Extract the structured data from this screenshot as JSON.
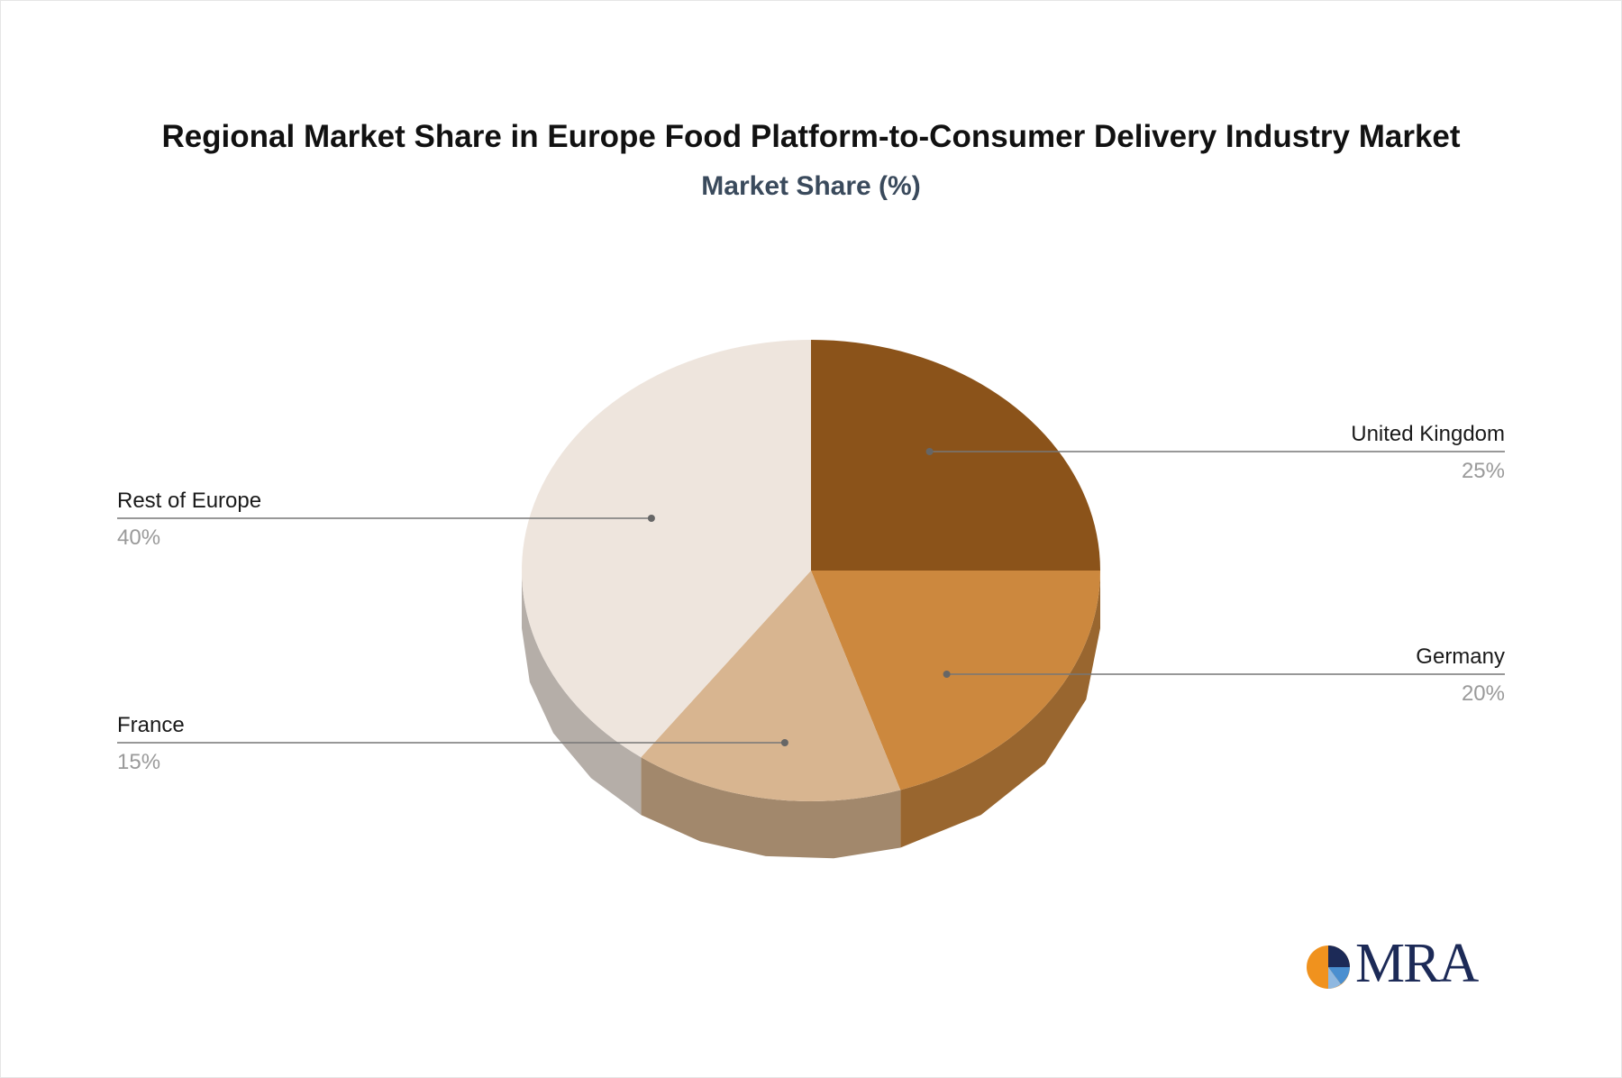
{
  "chart_data": {
    "type": "pie",
    "title": "Regional Market Share in Europe Food Platform-to-Consumer Delivery Industry Market",
    "subtitle": "Market Share (%)",
    "slices": [
      {
        "label": "United Kingdom",
        "value": 25,
        "display": "25%",
        "color": "#8b531a"
      },
      {
        "label": "Germany",
        "value": 20,
        "display": "20%",
        "color": "#cc883e"
      },
      {
        "label": "France",
        "value": 15,
        "display": "15%",
        "color": "#d8b590"
      },
      {
        "label": "Rest of Europe",
        "value": 40,
        "display": "40%",
        "color": "#eee5dd"
      }
    ]
  },
  "logo": {
    "text": "MRA",
    "colors": {
      "orange": "#f0921e",
      "navy": "#1c2a57",
      "blue": "#4a8fd0"
    }
  }
}
